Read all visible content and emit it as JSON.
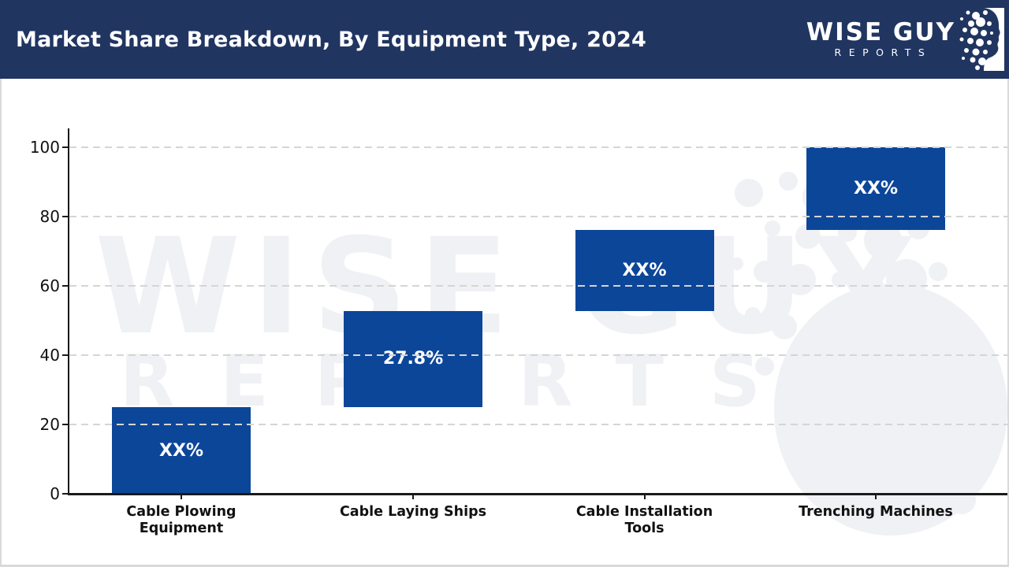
{
  "header": {
    "title": "Market Share Breakdown, By Equipment Type, 2024",
    "bg_color": "#213561",
    "logo": {
      "line1": "WISE GUY",
      "line2": "REPORTS"
    }
  },
  "watermark": {
    "line1": "WISE GUY",
    "line2": "REPORTS"
  },
  "chart_data": {
    "type": "bar",
    "subtype": "floating_segment_waterfall",
    "title": "Market Share Breakdown, By Equipment Type, 2024",
    "unit": "%",
    "categories": [
      "Cable Plowing Equipment",
      "Cable Laying Ships",
      "Cable Installation Tools",
      "Trenching Machines"
    ],
    "categories_display": [
      "Cable Plowing\nEquipment",
      "Cable Laying Ships",
      "Cable Installation\nTools",
      "Trenching Machines"
    ],
    "segments": [
      {
        "category": "Cable Plowing Equipment",
        "start": 0,
        "end": 25,
        "label": "XX%"
      },
      {
        "category": "Cable Laying Ships",
        "start": 25,
        "end": 52.8,
        "label": "27.8%"
      },
      {
        "category": "Cable Installation Tools",
        "start": 52.8,
        "end": 76.1,
        "label": "XX%"
      },
      {
        "category": "Trenching Machines",
        "start": 76.1,
        "end": 100,
        "label": "XX%"
      }
    ],
    "yticks": [
      0,
      20,
      40,
      60,
      80,
      100
    ],
    "ylim": [
      0,
      100
    ],
    "grid": "horizontal-dashed",
    "legend": "none",
    "bar_color": "#0c4699",
    "bar_label_color": "#ffffff",
    "axis_color": "#1a1a1a",
    "gridline_color": "#d5d5d5"
  }
}
